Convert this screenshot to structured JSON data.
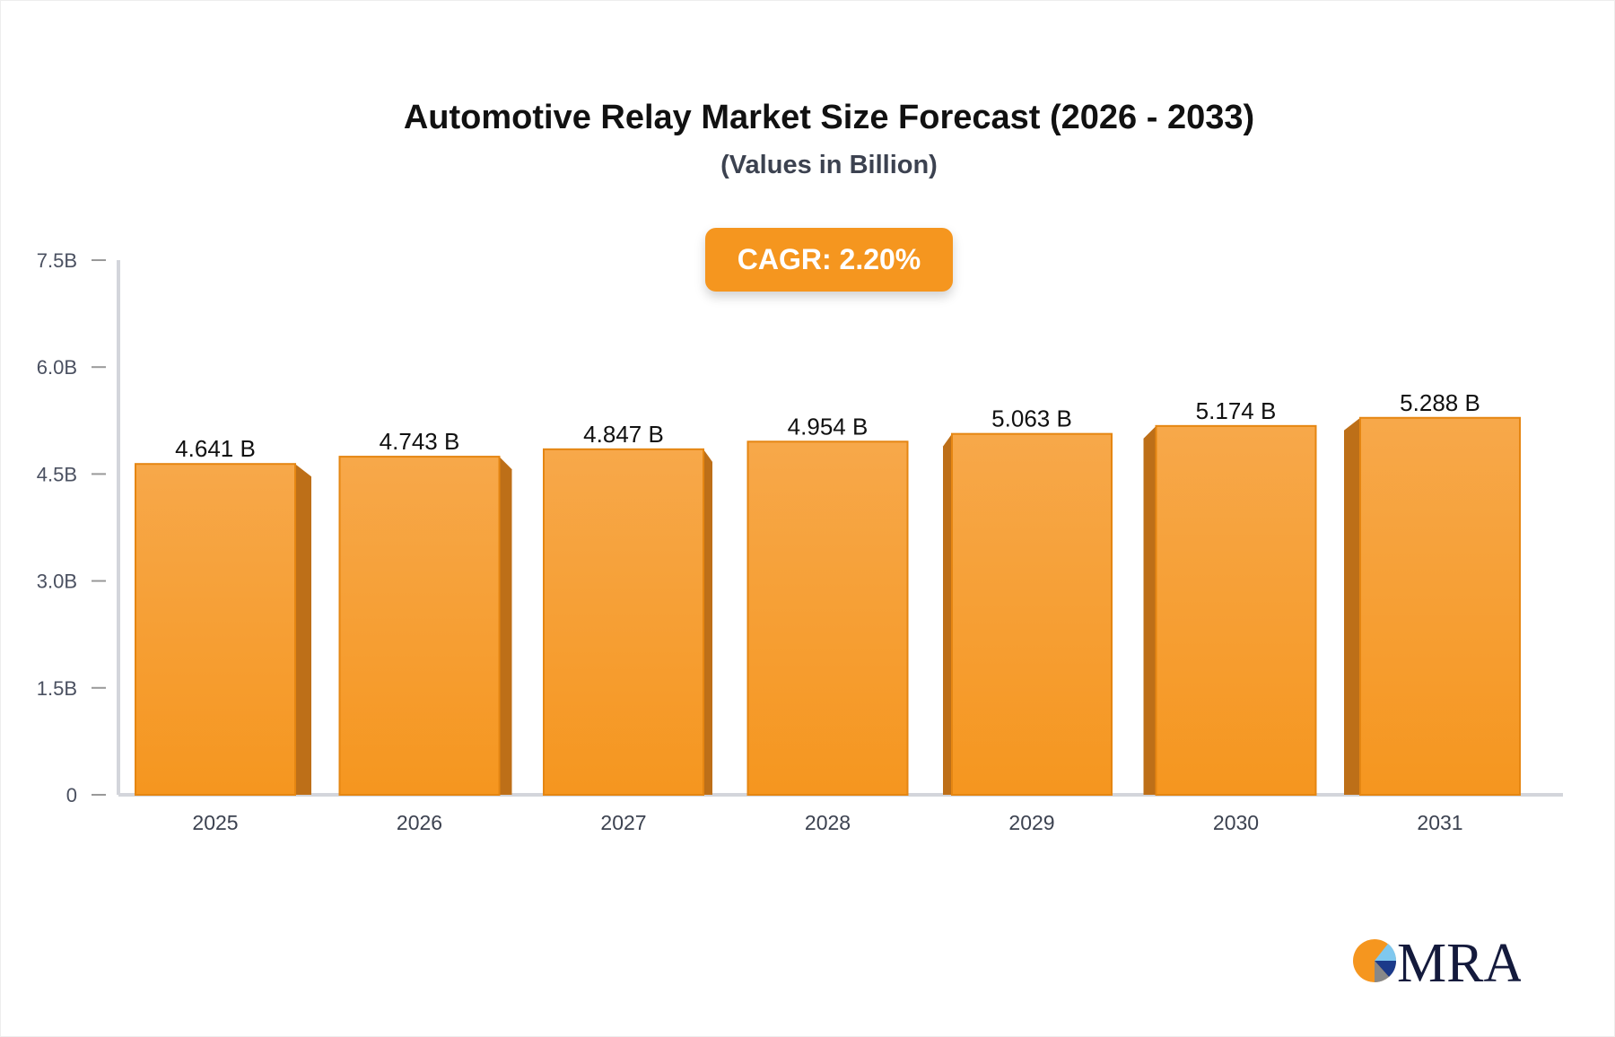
{
  "chart_data": {
    "type": "bar",
    "title": "Automotive Relay Market Size Forecast (2026 - 2033)",
    "subtitle": "(Values in Billion)",
    "categories": [
      "2025",
      "2026",
      "2027",
      "2028",
      "2029",
      "2030",
      "2031"
    ],
    "values": [
      4.641,
      4.743,
      4.847,
      4.954,
      5.063,
      5.174,
      5.288
    ],
    "data_labels": [
      "4.641 B",
      "4.743 B",
      "4.847 B",
      "4.954 B",
      "5.063 B",
      "5.174 B",
      "5.288 B"
    ],
    "ylim": [
      0,
      7.5
    ],
    "y_ticks": [
      0,
      1.5,
      3.0,
      4.5,
      6.0,
      7.5
    ],
    "y_tick_labels": [
      "0",
      "1.5B",
      "3.0B",
      "4.5B",
      "6.0B",
      "7.5B"
    ],
    "xlabel": "",
    "ylabel": "",
    "grid": false,
    "bar_color": "#f5961f",
    "bar_side_color": "#bd6f18",
    "annotation": "CAGR: 2.20%"
  },
  "logo": {
    "text": "MRA",
    "colors": [
      "#f5961f",
      "#7fc8ef",
      "#1b3a8a",
      "#888888"
    ]
  }
}
